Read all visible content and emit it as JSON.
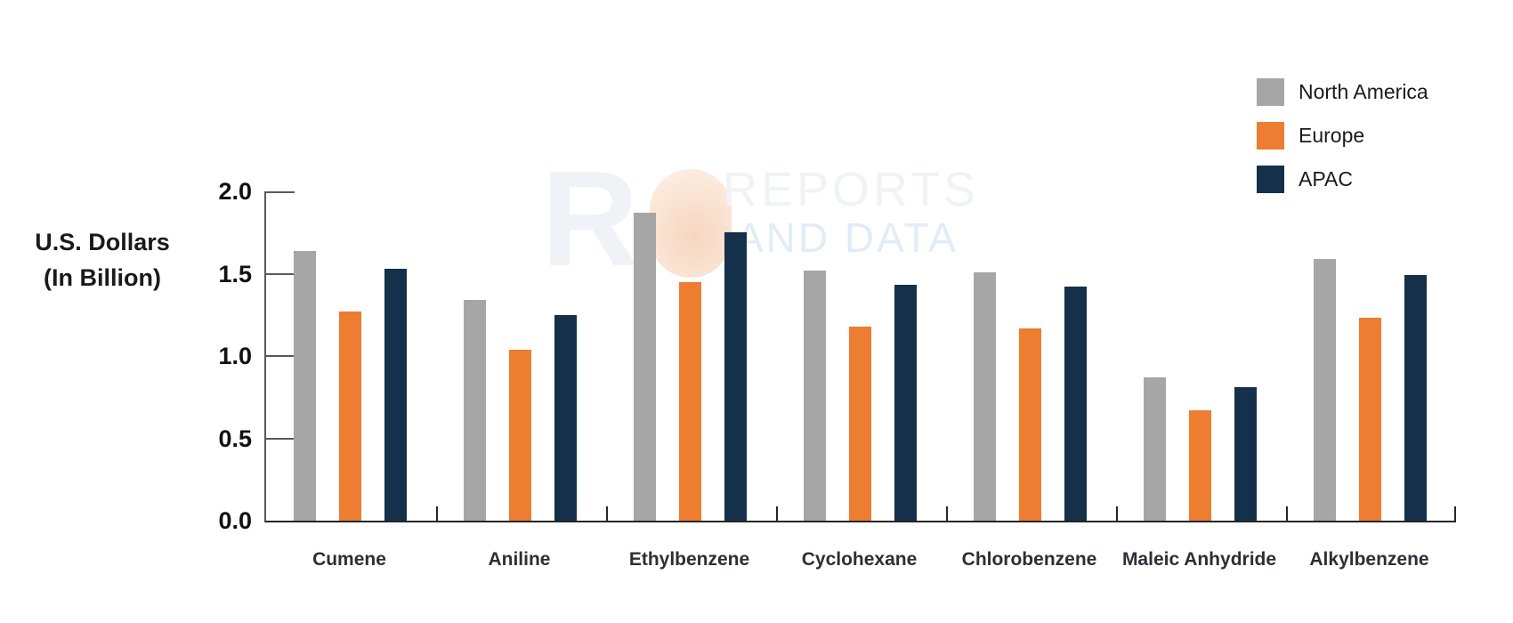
{
  "watermark": {
    "logo_r": "R",
    "line1": "REPORTS",
    "line2": "AND DATA"
  },
  "axes": {
    "y_title_line1": "U.S. Dollars",
    "y_title_line2": "(In Billion)"
  },
  "legend": {
    "position": "top-right",
    "items": [
      {
        "label": "North America",
        "color": "#a6a6a6"
      },
      {
        "label": "Europe",
        "color": "#ed7d31"
      },
      {
        "label": "APAC",
        "color": "#14304a"
      }
    ]
  },
  "chart_data": {
    "type": "bar",
    "categories": [
      "Cumene",
      "Aniline",
      "Ethylbenzene",
      "Cyclohexane",
      "Chlorobenzene",
      "Maleic Anhydride",
      "Alkylbenzene"
    ],
    "series": [
      {
        "name": "North America",
        "color": "#a6a6a6",
        "values": [
          1.64,
          1.34,
          1.87,
          1.52,
          1.51,
          0.87,
          1.59
        ]
      },
      {
        "name": "Europe",
        "color": "#ed7d31",
        "values": [
          1.27,
          1.04,
          1.45,
          1.18,
          1.17,
          0.67,
          1.23
        ]
      },
      {
        "name": "APAC",
        "color": "#14304a",
        "values": [
          1.53,
          1.25,
          1.75,
          1.43,
          1.42,
          0.81,
          1.49
        ]
      }
    ],
    "ylabel": "U.S. Dollars (In Billion)",
    "ylim": [
      0,
      2.0
    ],
    "yticks": [
      0.0,
      0.5,
      1.0,
      1.5,
      2.0
    ],
    "ytick_labels": [
      "0.0",
      "0.5",
      "1.0",
      "1.5",
      "2.0"
    ],
    "grid": false,
    "legend_position": "top-right"
  }
}
